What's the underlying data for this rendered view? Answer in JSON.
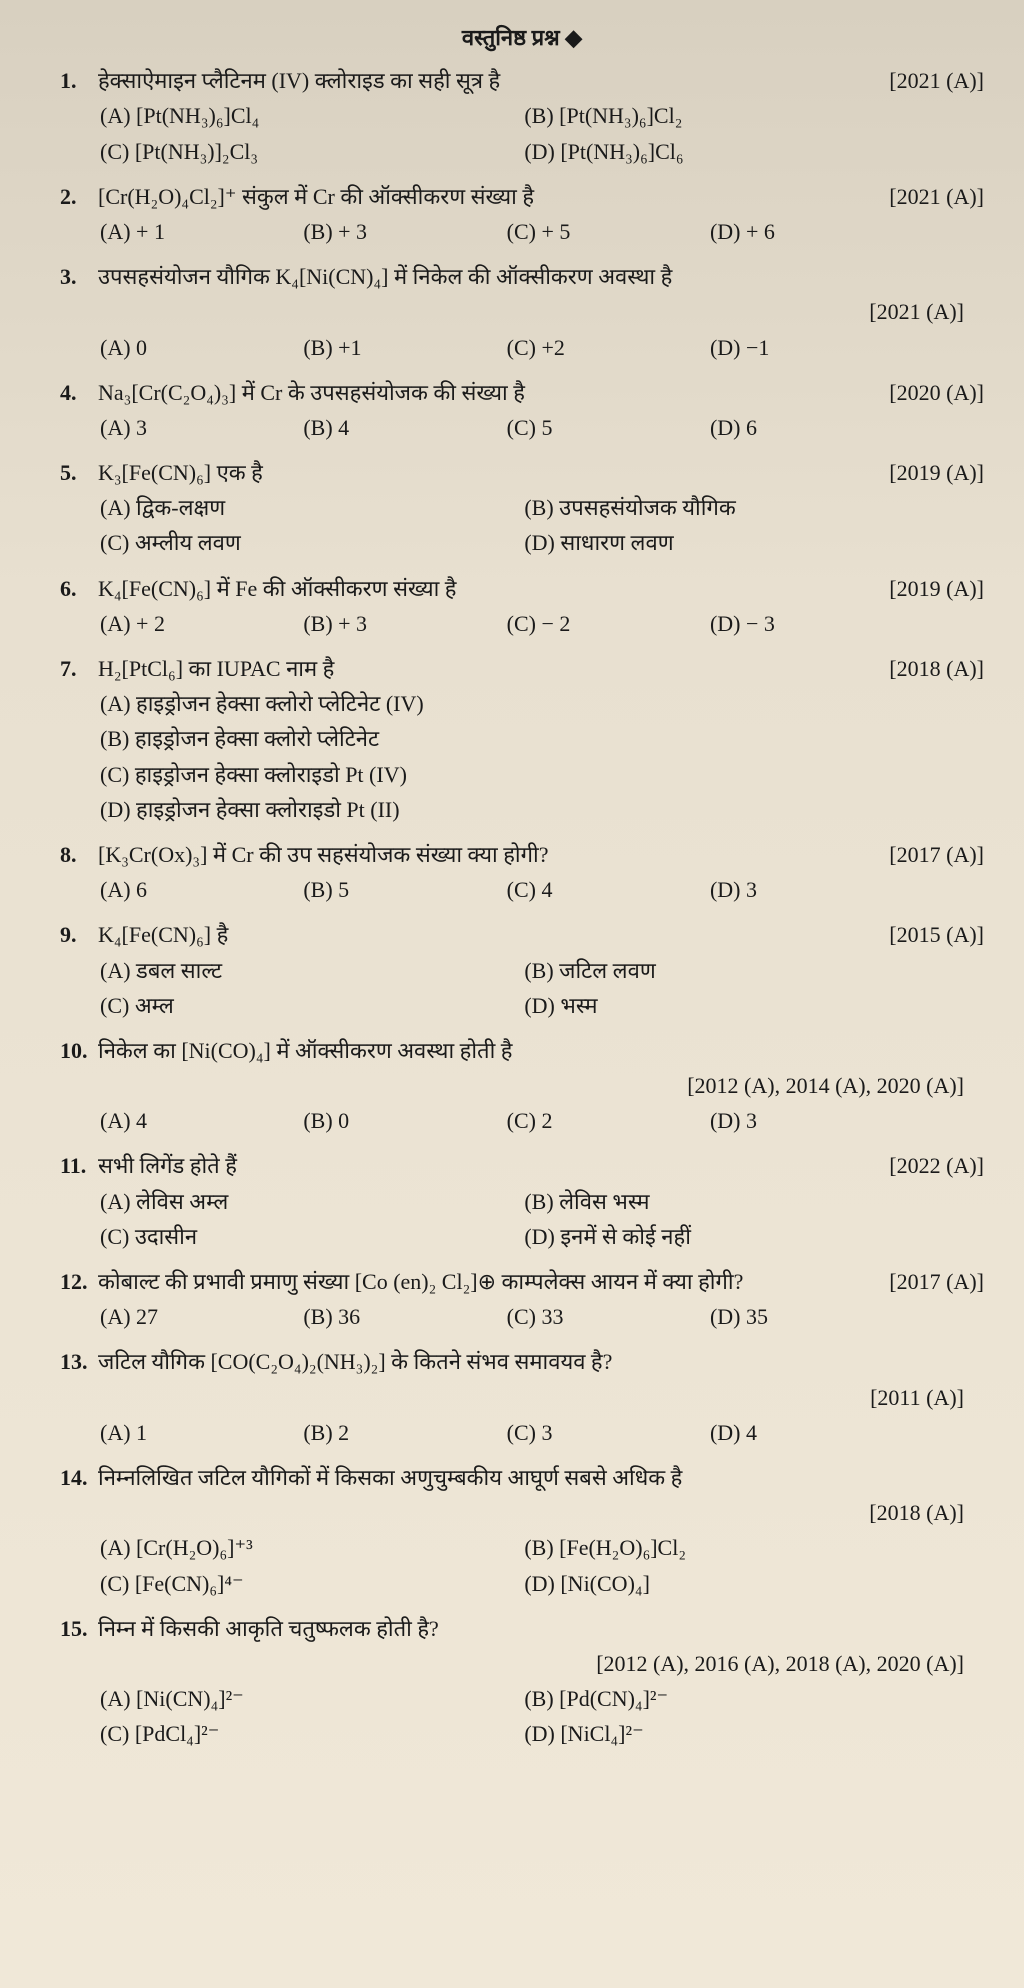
{
  "header": "वस्तुनिष्ठ प्रश्न ◆",
  "questions": [
    {
      "num": "1.",
      "text": "हेक्साऐमाइन प्लैटिनम (IV) क्लोराइड का सही सूत्र है",
      "year": "[2021 (A)]",
      "options": [
        {
          "label": "(A)",
          "text": "[Pt(NH₃)₆]Cl₄"
        },
        {
          "label": "(B)",
          "text": "[Pt(NH₃)₆]Cl₂"
        },
        {
          "label": "(C)",
          "text": "[Pt(NH₃)]₂Cl₃"
        },
        {
          "label": "(D)",
          "text": "[Pt(NH₃)₆]Cl₆"
        }
      ],
      "layout": "half"
    },
    {
      "num": "2.",
      "text": "[Cr(H₂O)₄Cl₂]⁺ संकुल में Cr की ऑक्सीकरण संख्या है",
      "year": "[2021 (A)]",
      "options": [
        {
          "label": "(A)",
          "text": "+ 1"
        },
        {
          "label": "(B)",
          "text": "+ 3"
        },
        {
          "label": "(C)",
          "text": "+ 5"
        },
        {
          "label": "(D)",
          "text": "+ 6"
        }
      ],
      "layout": "quarter"
    },
    {
      "num": "3.",
      "text": "उपसहसंयोजन यौगिक K₄[Ni(CN)₄] में निकेल की ऑक्सीकरण अवस्था है",
      "year": "[2021 (A)]",
      "yearBelow": true,
      "options": [
        {
          "label": "(A)",
          "text": "0"
        },
        {
          "label": "(B)",
          "text": "+1"
        },
        {
          "label": "(C)",
          "text": "+2"
        },
        {
          "label": "(D)",
          "text": "−1"
        }
      ],
      "layout": "quarter"
    },
    {
      "num": "4.",
      "text": "Na₃[Cr(C₂O₄)₃] में Cr के उपसहसंयोजक की संख्या है",
      "year": "[2020 (A)]",
      "options": [
        {
          "label": "(A)",
          "text": "3"
        },
        {
          "label": "(B)",
          "text": "4"
        },
        {
          "label": "(C)",
          "text": "5"
        },
        {
          "label": "(D)",
          "text": "6"
        }
      ],
      "layout": "quarter"
    },
    {
      "num": "5.",
      "text": "K₃[Fe(CN)₆] एक है",
      "year": "[2019 (A)]",
      "options": [
        {
          "label": "(A)",
          "text": "द्विक-लक्षण"
        },
        {
          "label": "(B)",
          "text": "उपसहसंयोजक यौगिक"
        },
        {
          "label": "(C)",
          "text": "अम्लीय लवण"
        },
        {
          "label": "(D)",
          "text": "साधारण लवण"
        }
      ],
      "layout": "half"
    },
    {
      "num": "6.",
      "text": "K₄[Fe(CN)₆] में Fe की ऑक्सीकरण संख्या है",
      "year": "[2019 (A)]",
      "options": [
        {
          "label": "(A)",
          "text": "+ 2"
        },
        {
          "label": "(B)",
          "text": "+ 3"
        },
        {
          "label": "(C)",
          "text": "− 2"
        },
        {
          "label": "(D)",
          "text": "− 3"
        }
      ],
      "layout": "quarter"
    },
    {
      "num": "7.",
      "text": "H₂[PtCl₆] का IUPAC नाम है",
      "year": "[2018 (A)]",
      "options": [
        {
          "label": "(A)",
          "text": "हाइड्रोजन हेक्सा क्लोरो प्लेटिनेट (IV)"
        },
        {
          "label": "(B)",
          "text": "हाइड्रोजन हेक्सा क्लोरो प्लेटिनेट"
        },
        {
          "label": "(C)",
          "text": "हाइड्रोजन हेक्सा क्लोराइडो Pt (IV)"
        },
        {
          "label": "(D)",
          "text": "हाइड्रोजन हेक्सा क्लोराइडो Pt (II)"
        }
      ],
      "layout": "full"
    },
    {
      "num": "8.",
      "text": "[K₃Cr(Ox)₃] में Cr की उप सहसंयोजक संख्या क्या होगी?",
      "year": "[2017 (A)]",
      "options": [
        {
          "label": "(A)",
          "text": "6"
        },
        {
          "label": "(B)",
          "text": "5"
        },
        {
          "label": "(C)",
          "text": "4"
        },
        {
          "label": "(D)",
          "text": "3"
        }
      ],
      "layout": "quarter"
    },
    {
      "num": "9.",
      "text": "K₄[Fe(CN)₆] है",
      "year": "[2015 (A)]",
      "options": [
        {
          "label": "(A)",
          "text": "डबल साल्ट"
        },
        {
          "label": "(B)",
          "text": "जटिल लवण"
        },
        {
          "label": "(C)",
          "text": "अम्ल"
        },
        {
          "label": "(D)",
          "text": "भस्म"
        }
      ],
      "layout": "half"
    },
    {
      "num": "10.",
      "text": "निकेल का [Ni(CO)₄] में ऑक्सीकरण अवस्था होती है",
      "year": "[2012 (A), 2014 (A), 2020 (A)]",
      "yearBelow": true,
      "options": [
        {
          "label": "(A)",
          "text": "4"
        },
        {
          "label": "(B)",
          "text": "0"
        },
        {
          "label": "(C)",
          "text": "2"
        },
        {
          "label": "(D)",
          "text": "3"
        }
      ],
      "layout": "quarter"
    },
    {
      "num": "11.",
      "text": "सभी लिगेंड होते हैं",
      "year": "[2022 (A)]",
      "options": [
        {
          "label": "(A)",
          "text": "लेविस अम्ल"
        },
        {
          "label": "(B)",
          "text": "लेविस भस्म"
        },
        {
          "label": "(C)",
          "text": "उदासीन"
        },
        {
          "label": "(D)",
          "text": "इनमें से कोई नहीं"
        }
      ],
      "layout": "half"
    },
    {
      "num": "12.",
      "text": "कोबाल्ट की प्रभावी प्रमाणु संख्या [Co (en)₂ Cl₂]⊕ काम्पलेक्स आयन में क्या होगी?",
      "year": "[2017 (A)]",
      "options": [
        {
          "label": "(A)",
          "text": "27"
        },
        {
          "label": "(B)",
          "text": "36"
        },
        {
          "label": "(C)",
          "text": "33"
        },
        {
          "label": "(D)",
          "text": "35"
        }
      ],
      "layout": "quarter"
    },
    {
      "num": "13.",
      "text": "जटिल यौगिक [CO(C₂O₄)₂(NH₃)₂] के कितने संभव समावयव है?",
      "year": "[2011 (A)]",
      "yearBelow": true,
      "options": [
        {
          "label": "(A)",
          "text": "1"
        },
        {
          "label": "(B)",
          "text": "2"
        },
        {
          "label": "(C)",
          "text": "3"
        },
        {
          "label": "(D)",
          "text": "4"
        }
      ],
      "layout": "quarter"
    },
    {
      "num": "14.",
      "text": "निम्नलिखित जटिल यौगिकों में किसका अणुचुम्बकीय आघूर्ण सबसे अधिक है",
      "year": "[2018 (A)]",
      "yearBelow": true,
      "options": [
        {
          "label": "(A)",
          "text": "[Cr(H₂O)₆]⁺³"
        },
        {
          "label": "(B)",
          "text": "[Fe(H₂O)₆]Cl₂"
        },
        {
          "label": "(C)",
          "text": "[Fe(CN)₆]⁴⁻"
        },
        {
          "label": "(D)",
          "text": "[Ni(CO)₄]"
        }
      ],
      "layout": "half"
    },
    {
      "num": "15.",
      "text": "निम्न में किसकी आकृति चतुष्फलक होती है?",
      "year": "[2012 (A), 2016 (A), 2018 (A), 2020 (A)]",
      "yearBelow": true,
      "options": [
        {
          "label": "(A)",
          "text": "[Ni(CN)₄]²⁻"
        },
        {
          "label": "(B)",
          "text": "[Pd(CN)₄]²⁻"
        },
        {
          "label": "(C)",
          "text": "[PdCl₄]²⁻"
        },
        {
          "label": "(D)",
          "text": "[NiCl₄]²⁻"
        }
      ],
      "layout": "half"
    }
  ]
}
